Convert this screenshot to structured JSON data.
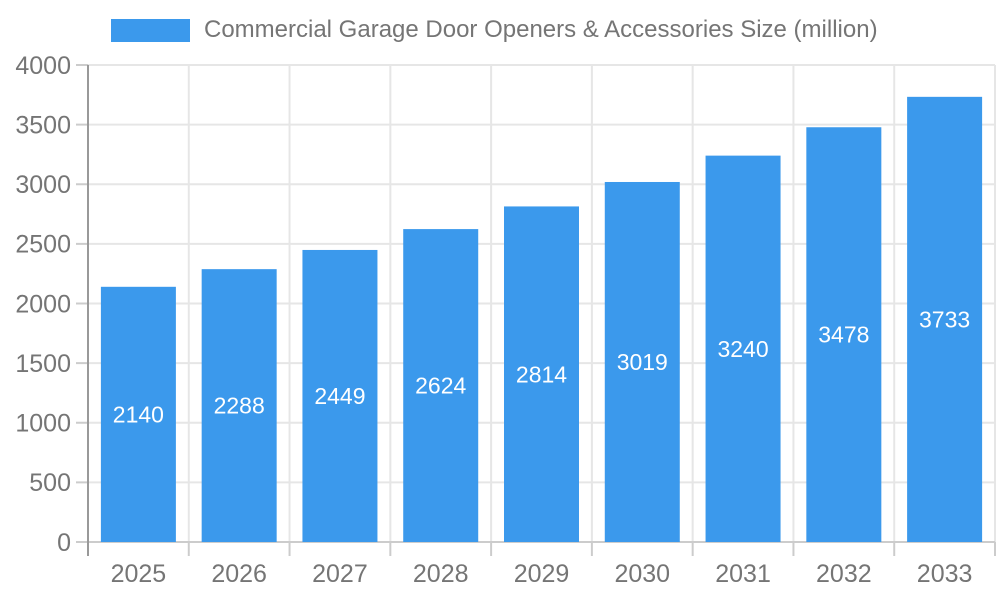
{
  "chart_data": {
    "type": "bar",
    "title": "Commercial Garage Door Openers & Accessories Size (million)",
    "categories": [
      "2025",
      "2026",
      "2027",
      "2028",
      "2029",
      "2030",
      "2031",
      "2032",
      "2033"
    ],
    "values": [
      2140,
      2288,
      2449,
      2624,
      2814,
      3019,
      3240,
      3478,
      3733
    ],
    "xlabel": "",
    "ylabel": "",
    "ylim": [
      0,
      4000
    ],
    "ytick_step": 500,
    "grid": true,
    "legend_position": "top",
    "value_labels": "inside-middle",
    "colors": {
      "bar": "#3b99ec",
      "value_label": "#ffffff",
      "axis_text": "#757575",
      "grid": "#e6e6e6",
      "y_axis_line": "#999999",
      "x_axis_line": "#cccccc",
      "background": "#ffffff"
    }
  }
}
